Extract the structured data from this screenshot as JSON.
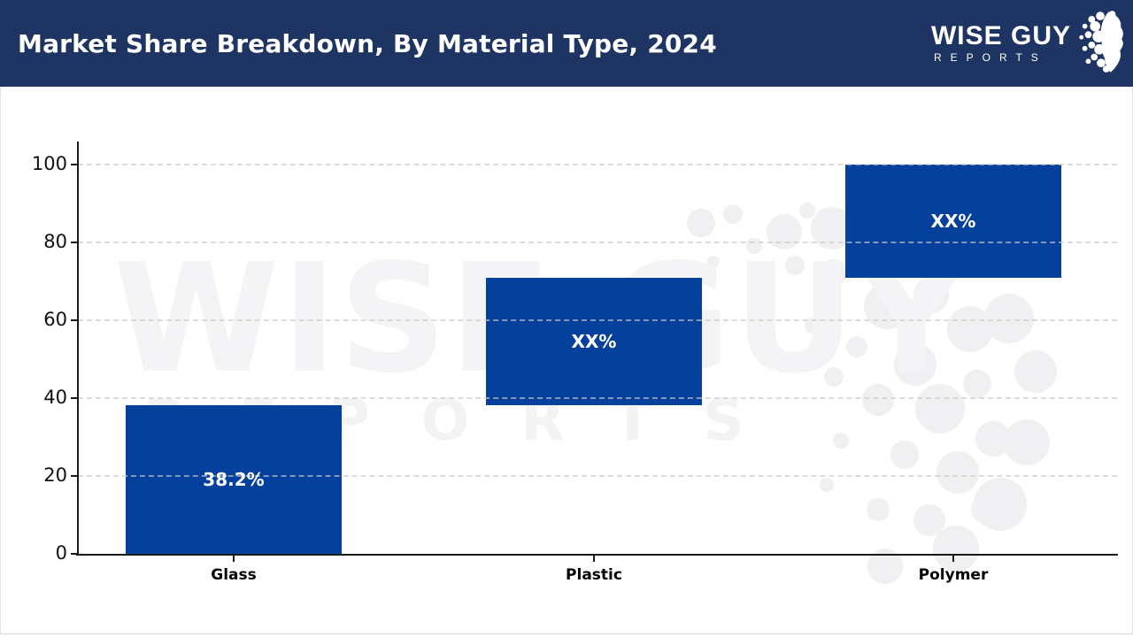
{
  "header": {
    "title": "Market Share Breakdown, By Material Type, 2024",
    "bg_color": "#1e3462",
    "logo": {
      "line1": "WISE GUY",
      "line2": "REPORTS"
    }
  },
  "watermark": {
    "line1": "WISE GUY",
    "line2": "REPORTS"
  },
  "chart_data": {
    "type": "bar",
    "subtype": "floating-waterfall-bars",
    "title": "Market Share Breakdown, By Material Type, 2024",
    "categories": [
      "Glass",
      "Plastic",
      "Polymer"
    ],
    "series": [
      {
        "name": "Market share (%)",
        "segments": [
          {
            "category": "Glass",
            "start": 0,
            "end": 38.2,
            "label": "38.2%"
          },
          {
            "category": "Plastic",
            "start": 38.2,
            "end": 71,
            "label": "XX%"
          },
          {
            "category": "Polymer",
            "start": 71,
            "end": 100,
            "label": "XX%"
          }
        ]
      }
    ],
    "xlabel": "",
    "ylabel": "",
    "ylim": [
      0,
      105
    ],
    "yticks": [
      0,
      20,
      40,
      60,
      80,
      100
    ],
    "grid": "horizontal-dashed",
    "legend": "none",
    "bar_color": "#05419c",
    "bar_label_color": "#ffffff",
    "axis_color": "#1a1a1a",
    "gridline_color": "#d9d9d9"
  }
}
